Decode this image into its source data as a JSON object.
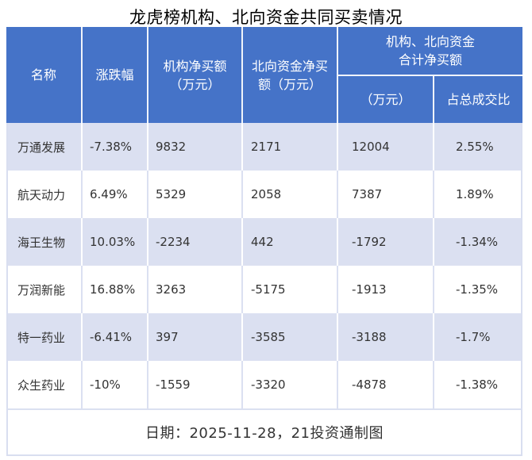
{
  "title": "龙虎榜机构、北向资金共同买卖情况",
  "table": {
    "header": {
      "name": "名称",
      "change": "涨跌幅",
      "inst_line1": "机构净买额",
      "inst_line2": "（万元）",
      "north_line1": "北向资金净买",
      "north_line2": "额（万元）",
      "combined_line1": "机构、北向资金",
      "combined_line2": "合计净买额",
      "combined_sub_amount": "（万元）",
      "combined_sub_ratio": "占总成交比"
    },
    "rows": [
      {
        "name": "万通发展",
        "change": "-7.38%",
        "inst": "9832",
        "north": "2171",
        "total": "12004",
        "ratio": "2.55%"
      },
      {
        "name": "航天动力",
        "change": "6.49%",
        "inst": "5329",
        "north": "2058",
        "total": "7387",
        "ratio": "1.89%"
      },
      {
        "name": "海王生物",
        "change": "10.03%",
        "inst": "-2234",
        "north": "442",
        "total": "-1792",
        "ratio": "-1.34%"
      },
      {
        "name": "万润新能",
        "change": "16.88%",
        "inst": "3263",
        "north": "-5175",
        "total": "-1913",
        "ratio": "-1.35%"
      },
      {
        "name": "特一药业",
        "change": "-6.41%",
        "inst": "397",
        "north": "-3585",
        "total": "-3188",
        "ratio": "-1.7%"
      },
      {
        "name": "众生药业",
        "change": "-10%",
        "inst": "-1559",
        "north": "-3320",
        "total": "-4878",
        "ratio": "-1.38%"
      }
    ]
  },
  "footer": {
    "note": "日期：2025-11-28，21投资通制图"
  },
  "colors": {
    "header_bg": "#4573C8",
    "band_bg": "#DBE0F1",
    "frame_border": "#D9DEF0",
    "header_text": "#FFFFFF",
    "body_text": "#333333",
    "title_text": "#000000"
  },
  "chart_data": {
    "type": "table",
    "title": "龙虎榜机构、北向资金共同买卖情况",
    "columns": [
      "名称",
      "涨跌幅",
      "机构净买额（万元）",
      "北向资金净买额（万元）",
      "机构、北向资金合计净买额（万元）",
      "机构、北向资金合计净买额占总成交比"
    ],
    "rows": [
      [
        "万通发展",
        "-7.38%",
        9832,
        2171,
        12004,
        "2.55%"
      ],
      [
        "航天动力",
        "6.49%",
        5329,
        2058,
        7387,
        "1.89%"
      ],
      [
        "海王生物",
        "10.03%",
        -2234,
        442,
        -1792,
        "-1.34%"
      ],
      [
        "万润新能",
        "16.88%",
        3263,
        -5175,
        -1913,
        "-1.35%"
      ],
      [
        "特一药业",
        "-6.41%",
        397,
        -3585,
        -3188,
        "-1.7%"
      ],
      [
        "众生药业",
        "-10%",
        -1559,
        -3320,
        -4878,
        "-1.38%"
      ]
    ],
    "note": "日期：2025-11-28，21投资通制图"
  }
}
